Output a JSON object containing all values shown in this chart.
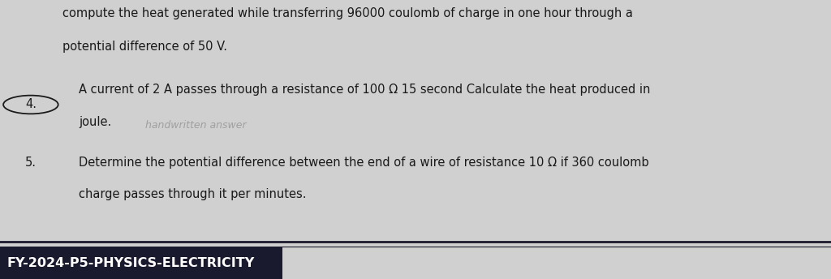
{
  "bg_color": "#d0d0d0",
  "text_color": "#1a1a1a",
  "footer_bg": "#1a1a2e",
  "footer_text": "FY-2024-P5-PHYSICS-ELECTRICITY",
  "footer_text_color": "#ffffff",
  "line1_partial": "compute the heat generated while transferring 96000 coulomb of charge in one hour through a",
  "line2_partial": "potential difference of 50 V.",
  "q4_number": "4.",
  "q4_text_line1": "A current of 2 A passes through a resistance of 100 Ω 15 second Calculate the heat produced in",
  "q4_text_line2": "joule.",
  "q5_number": "5.",
  "q5_text_line1": "Determine the potential difference between the end of a wire of resistance 10 Ω if 360 coulomb",
  "q5_text_line2": "charge passes through it per minutes.",
  "footer_line_color": "#1a1a2e",
  "main_font_size": 10.5,
  "footer_font_size": 11.5
}
